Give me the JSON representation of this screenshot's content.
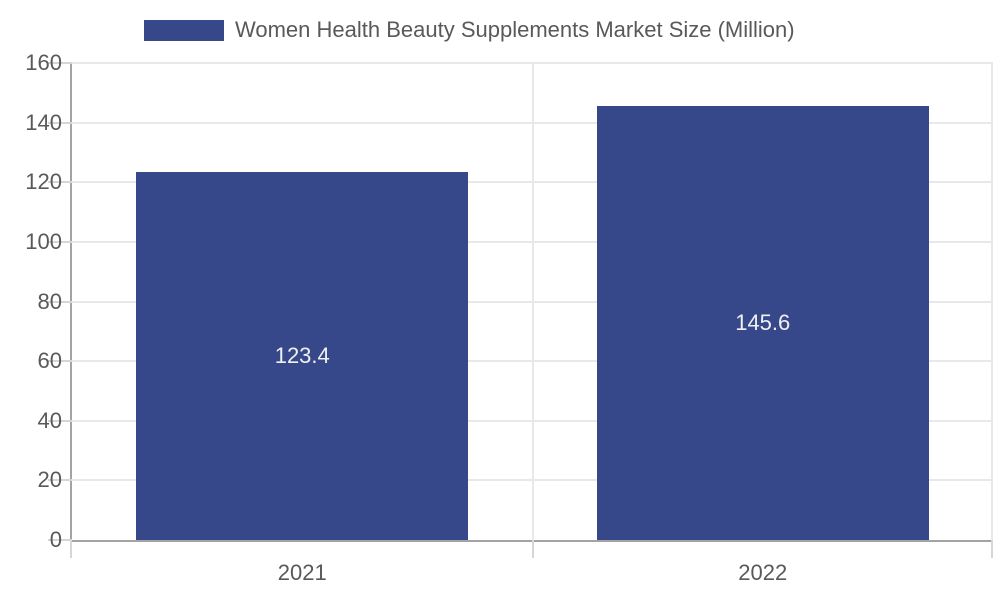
{
  "chart_data": {
    "type": "bar",
    "categories": [
      "2021",
      "2022"
    ],
    "values": [
      123.4,
      145.6
    ],
    "value_labels": [
      "123.4",
      "145.6"
    ],
    "series": [
      {
        "name": "Women Health Beauty Supplements Market Size (Million)",
        "values": [
          123.4,
          145.6
        ]
      }
    ],
    "legend": [
      "Women Health Beauty Supplements Market Size (Million)"
    ],
    "legend_position": "top-left",
    "xlabel": "",
    "ylabel": "",
    "ylim": [
      0,
      160
    ],
    "yticks": [
      0,
      20,
      40,
      60,
      80,
      100,
      120,
      140,
      160
    ],
    "grid": true,
    "colors": {
      "bar": "#36488a",
      "grid": "#e8e8e8",
      "tick": "#d6d6d6",
      "axis": "#a3a3a3",
      "text": "#595959",
      "value_label": "#f0f0f0",
      "background": "#ffffff"
    }
  }
}
